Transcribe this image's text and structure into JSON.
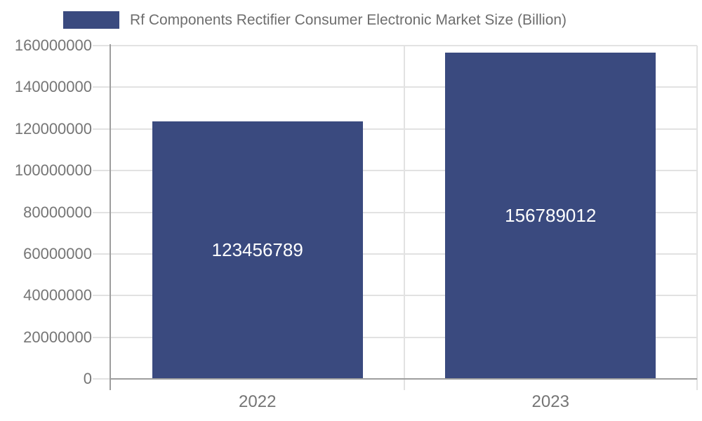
{
  "legend": {
    "label": "Rf Components Rectifier Consumer Electronic Market Size (Billion)",
    "swatch_color": "#3A4A7F"
  },
  "chart_data": {
    "type": "bar",
    "title": "Rf Components Rectifier Consumer Electronic Market Size (Billion)",
    "categories": [
      "2022",
      "2023"
    ],
    "values": [
      123456789,
      156789012
    ],
    "bar_labels": [
      "123456789",
      "156789012"
    ],
    "xlabel": "",
    "ylabel": "",
    "ylim": [
      0,
      160000000
    ],
    "ytick_step": 20000000,
    "yticks": [
      0,
      20000000,
      40000000,
      60000000,
      80000000,
      100000000,
      120000000,
      140000000,
      160000000
    ],
    "ytick_labels": [
      "0",
      "20000000",
      "40000000",
      "60000000",
      "80000000",
      "100000000",
      "120000000",
      "140000000",
      "160000000"
    ],
    "grid": true,
    "legend_position": "top-left",
    "colors": {
      "bar": "#3A4A7F",
      "bar_label": "#ffffff",
      "grid_line": "#e2e2e2",
      "axis_line": "#9e9e9e",
      "tick_label": "#757575",
      "title": "#6e6e6e"
    }
  }
}
